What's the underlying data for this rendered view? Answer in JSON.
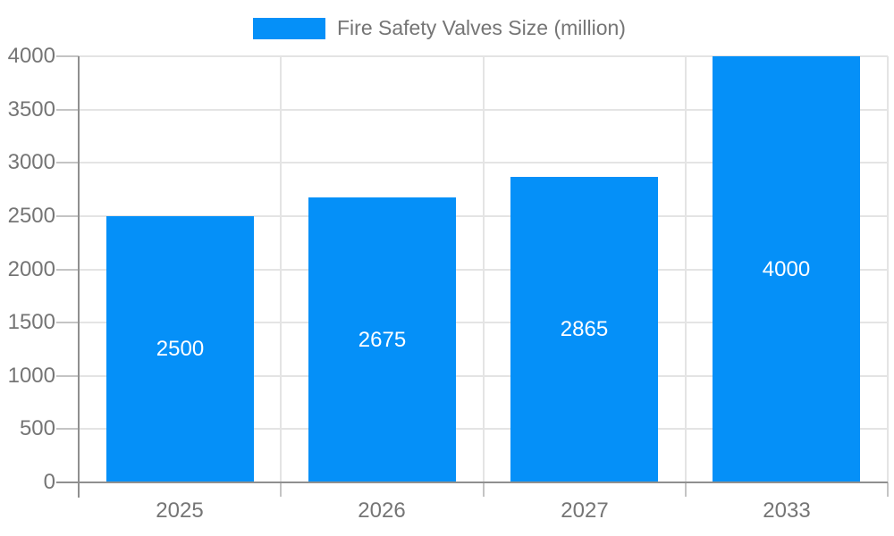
{
  "legend": {
    "label": "Fire Safety Valves Size (million)"
  },
  "colors": {
    "bar": "#0590F8",
    "text_gray": "#757575",
    "grid": "#E4E4E4",
    "axis": "#8F8F8F",
    "tick": "#C4C4C4",
    "value_label": "#FFFFFF",
    "background": "#FFFFFF"
  },
  "chart_data": {
    "type": "bar",
    "title": "Fire Safety Valves Size (million)",
    "categories": [
      "2025",
      "2026",
      "2027",
      "2033"
    ],
    "values": [
      2500,
      2675,
      2865,
      4000
    ],
    "bar_labels": [
      "2500",
      "2675",
      "2865",
      "4000"
    ],
    "xlabel": "",
    "ylabel": "",
    "ylim": [
      0,
      4000
    ],
    "ytick_step": 500,
    "yticks": [
      0,
      500,
      1000,
      1500,
      2000,
      2500,
      3000,
      3500,
      4000
    ],
    "grid": "on",
    "legend_position": "top",
    "bar_label_position": "center"
  }
}
